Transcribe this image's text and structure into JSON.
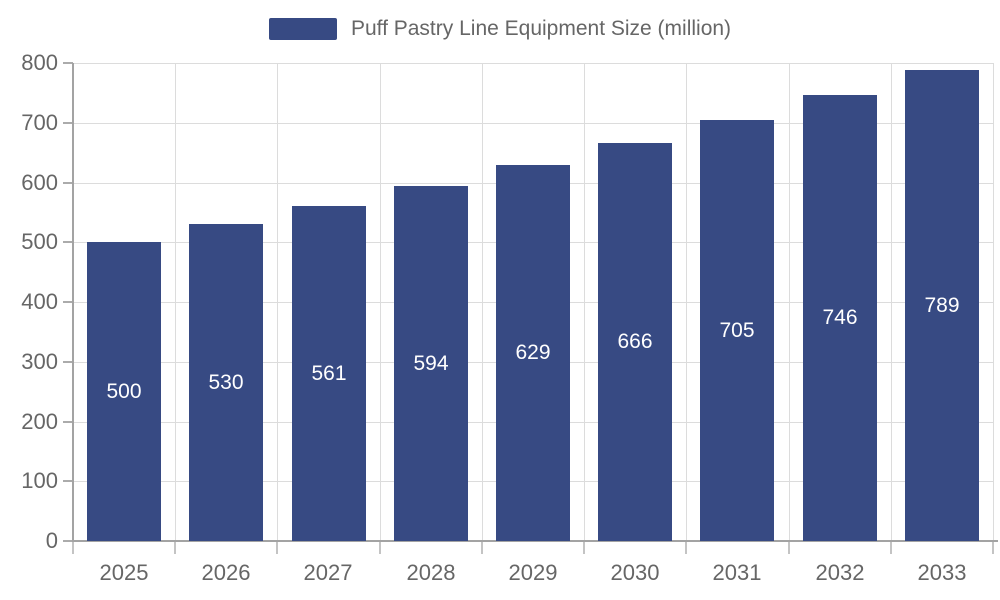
{
  "chart_data": {
    "type": "bar",
    "title": "",
    "legend_label": "Puff Pastry Line Equipment Size (million)",
    "legend_position": "top-center",
    "categories": [
      "2025",
      "2026",
      "2027",
      "2028",
      "2029",
      "2030",
      "2031",
      "2032",
      "2033"
    ],
    "values": [
      500,
      530,
      561,
      594,
      629,
      666,
      705,
      746,
      789
    ],
    "xlabel": "",
    "ylabel": "",
    "ylim": [
      0,
      800
    ],
    "yticks": [
      0,
      100,
      200,
      300,
      400,
      500,
      600,
      700,
      800
    ],
    "grid": true,
    "value_labels_shown": true,
    "colors": {
      "bar": "#374A83",
      "bar_value_text": "#ffffff",
      "axis_text": "#666666",
      "legend_text": "#666666",
      "gridline": "#dcdcdc",
      "axis_line": "#a3a3a3",
      "tick": "#c4c4c4"
    }
  }
}
